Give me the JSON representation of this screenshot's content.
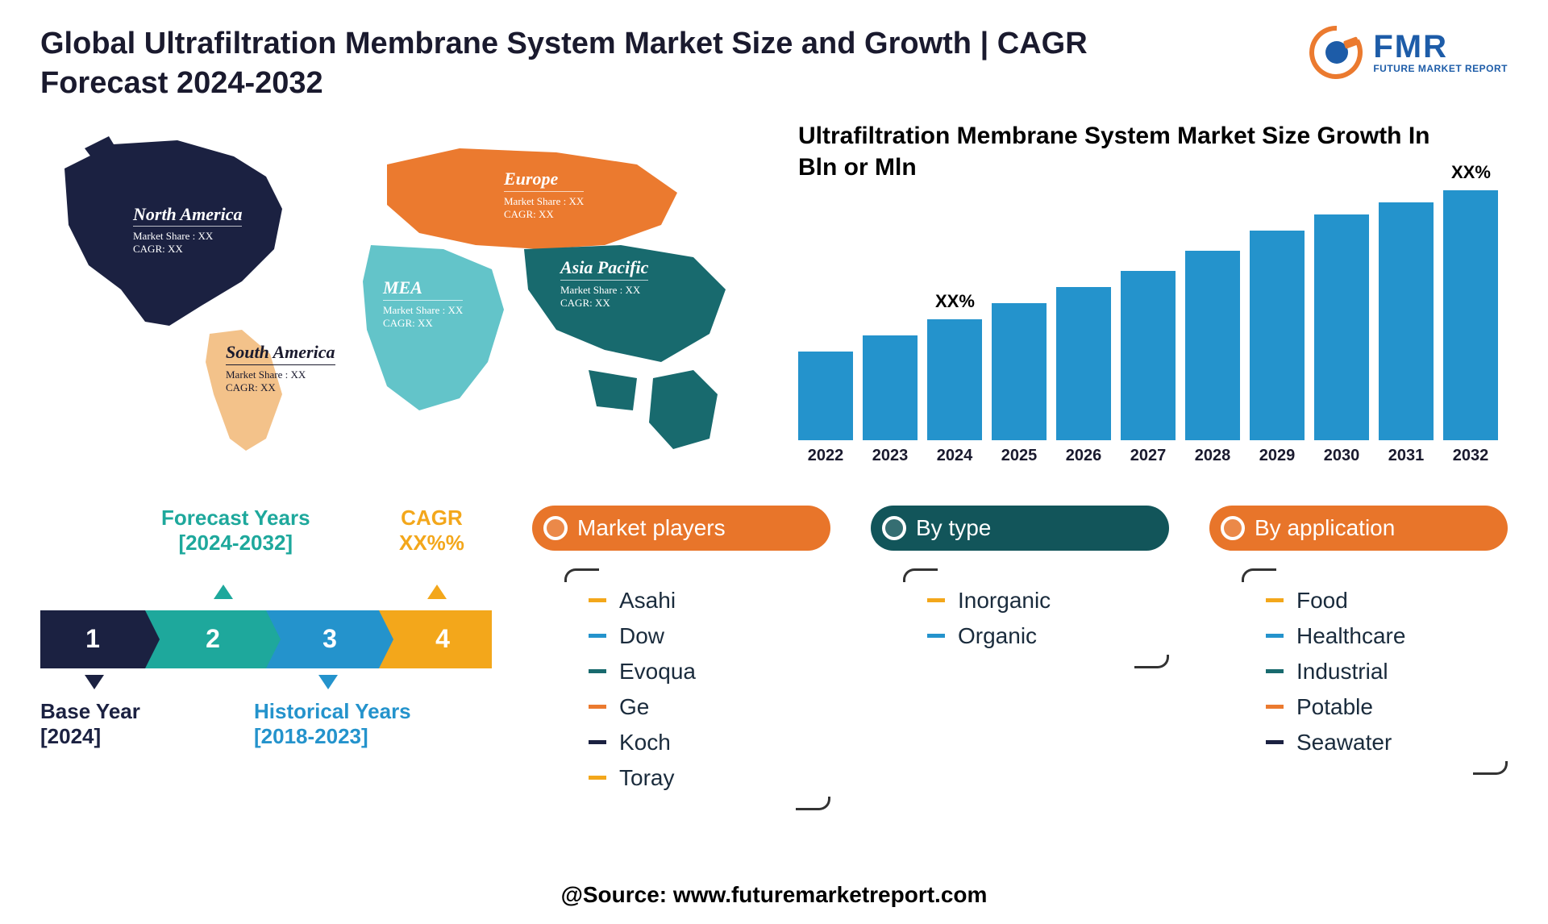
{
  "title": "Global Ultrafiltration Membrane System  Market Size and Growth | CAGR Forecast 2024-2032",
  "logo": {
    "fmr": "FMR",
    "sub": "FUTURE MARKET REPORT"
  },
  "colors": {
    "navy": "#1b2141",
    "orange": "#eb7a2f",
    "teal_dark": "#186a6e",
    "teal_light": "#63c4c9",
    "sand": "#f3c28a",
    "bar": "#2493cc",
    "pill_orange": "#e8752a",
    "pill_teal": "#12555a",
    "tl_teal": "#1ea89c",
    "tl_blue": "#2493cc",
    "tl_yellow": "#f3a71b"
  },
  "regions": {
    "na": {
      "name": "North America",
      "share": "Market Share : XX",
      "cagr": "CAGR: XX"
    },
    "sa": {
      "name": "South America",
      "share": "Market Share : XX",
      "cagr": "CAGR: XX"
    },
    "eu": {
      "name": "Europe",
      "share": "Market Share : XX",
      "cagr": "CAGR: XX"
    },
    "mea": {
      "name": "MEA",
      "share": "Market Share : XX",
      "cagr": "CAGR: XX"
    },
    "ap": {
      "name": "Asia Pacific",
      "share": "Market Share : XX",
      "cagr": "CAGR: XX"
    }
  },
  "chart": {
    "title": "Ultrafiltration Membrane System Market Size Growth In\nBln or Mln",
    "years": [
      "2022",
      "2023",
      "2024",
      "2025",
      "2026",
      "2027",
      "2028",
      "2029",
      "2030",
      "2031",
      "2032"
    ],
    "heights": [
      110,
      130,
      150,
      170,
      190,
      210,
      235,
      260,
      280,
      295,
      310
    ],
    "bar_color": "#2493cc",
    "annot_2024": "XX%",
    "annot_2032": "XX%"
  },
  "timeline": {
    "forecast_label": "Forecast Years",
    "forecast_range": "[2024-2032]",
    "cagr_label": "CAGR",
    "cagr_value": "XX%%",
    "base_label": "Base Year",
    "base_range": "[2024]",
    "hist_label": "Historical Years",
    "hist_range": "[2018-2023]",
    "segs": [
      "1",
      "2",
      "3",
      "4"
    ]
  },
  "pills": {
    "players": {
      "title": "Market players",
      "color": "#e8752a",
      "items": [
        "Asahi",
        "Dow",
        "Evoqua",
        "Ge",
        "Koch",
        "Toray"
      ],
      "marker_colors": [
        "#f3a71b",
        "#2493cc",
        "#186a6e",
        "#eb7a2f",
        "#1b2141",
        "#f3a71b"
      ]
    },
    "type": {
      "title": "By type",
      "color": "#12555a",
      "items": [
        "Inorganic",
        "Organic"
      ],
      "marker_colors": [
        "#f3a71b",
        "#2493cc"
      ]
    },
    "application": {
      "title": "By application",
      "color": "#e8752a",
      "items": [
        "Food",
        "Healthcare",
        "Industrial",
        "Potable",
        "Seawater"
      ],
      "marker_colors": [
        "#f3a71b",
        "#2493cc",
        "#186a6e",
        "#eb7a2f",
        "#1b2141"
      ]
    }
  },
  "source": "@Source: www.futuremarketreport.com"
}
